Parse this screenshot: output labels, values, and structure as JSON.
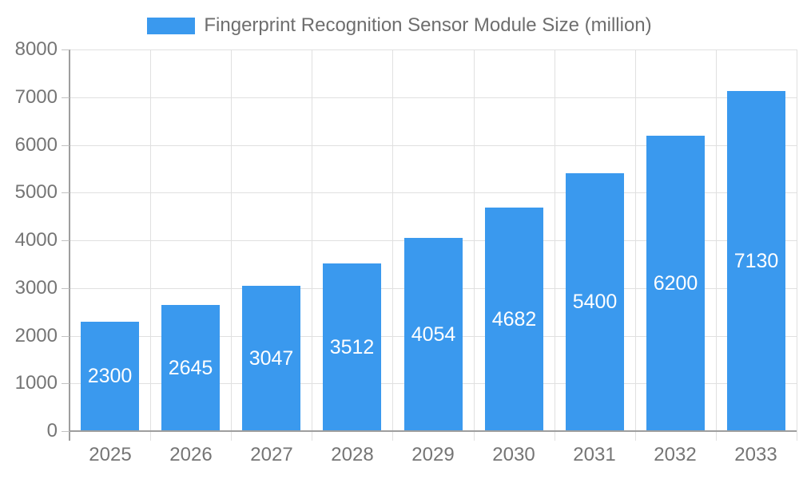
{
  "legend": {
    "label": "Fingerprint Recognition Sensor Module Size (million)"
  },
  "colors": {
    "bar": "#3a99ee",
    "grid": "#e0e0e0",
    "axis": "#9e9e9e",
    "tick": "#c2c2c2",
    "axis_text": "#757575",
    "bar_label": "#ffffff",
    "background": "#ffffff"
  },
  "chart_data": {
    "type": "bar",
    "title": "Fingerprint Recognition Sensor Module Size (million)",
    "categories": [
      "2025",
      "2026",
      "2027",
      "2028",
      "2029",
      "2030",
      "2031",
      "2032",
      "2033"
    ],
    "values": [
      2300,
      2645,
      3047,
      3512,
      4054,
      4682,
      5400,
      6200,
      7130
    ],
    "xlabel": "",
    "ylabel": "",
    "ylim": [
      0,
      8000
    ],
    "ytick_step": 1000,
    "yticks": [
      0,
      1000,
      2000,
      3000,
      4000,
      5000,
      6000,
      7000,
      8000
    ],
    "grid": true,
    "legend_position": "top",
    "value_labels": "inside-center"
  }
}
